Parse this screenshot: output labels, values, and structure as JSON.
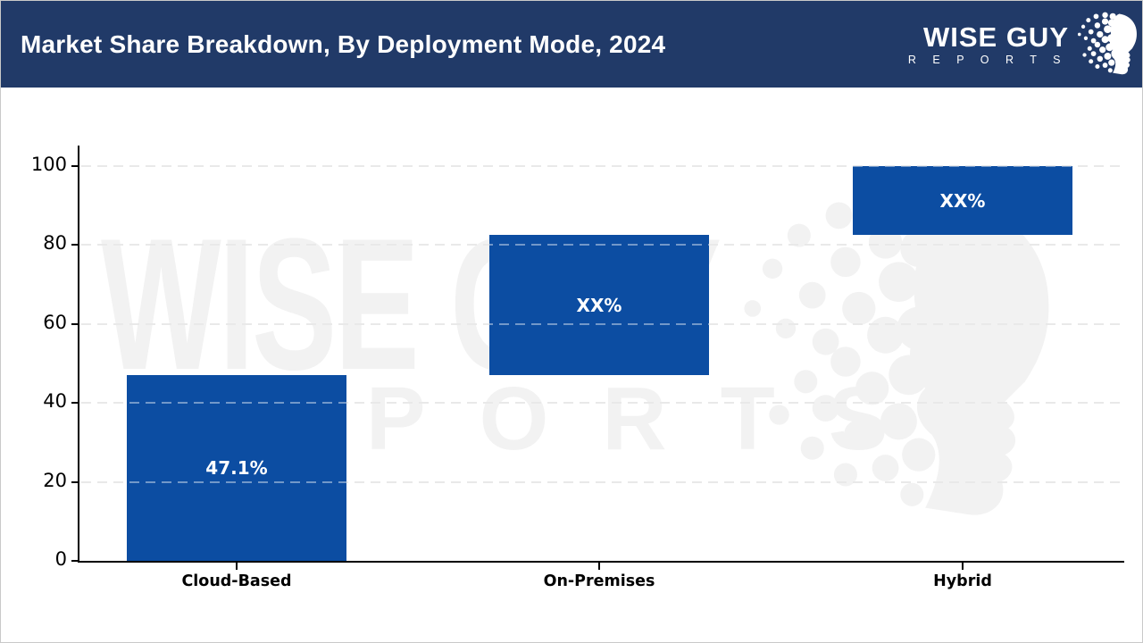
{
  "header": {
    "title": "Market Share Breakdown, By Deployment Mode, 2024",
    "background_color": "#213A68",
    "logo": {
      "line1": "WISE GUY",
      "line2": "R E P O R T S"
    }
  },
  "watermark": {
    "line1": "WISE GUY",
    "line2": "REPORTS",
    "color": "#f2f2f2"
  },
  "chart_data": {
    "type": "bar",
    "subtype": "waterfall (stacked market-share segments)",
    "title": "Market Share Breakdown, By Deployment Mode, 2024",
    "categories": [
      "Cloud-Based",
      "On-Premises",
      "Hybrid"
    ],
    "segments": [
      {
        "category": "Cloud-Based",
        "start": 0,
        "end": 47.1,
        "label": "47.1%"
      },
      {
        "category": "On-Premises",
        "start": 47.1,
        "end": 82.5,
        "label": "XX%"
      },
      {
        "category": "Hybrid",
        "start": 82.5,
        "end": 100,
        "label": "XX%"
      }
    ],
    "values_displayed": [
      "47.1%",
      "XX%",
      "XX%"
    ],
    "y_ticks": [
      0,
      20,
      40,
      60,
      80,
      100
    ],
    "ylim": [
      0,
      100
    ],
    "xlabel": "",
    "ylabel": "",
    "legend": "none",
    "grid": {
      "orientation": "horizontal",
      "style": "dashed",
      "color": "#d9d9d9"
    },
    "bar_color": "#0C4DA2",
    "bar_label_color": "#ffffff",
    "axis_color": "#000000"
  }
}
